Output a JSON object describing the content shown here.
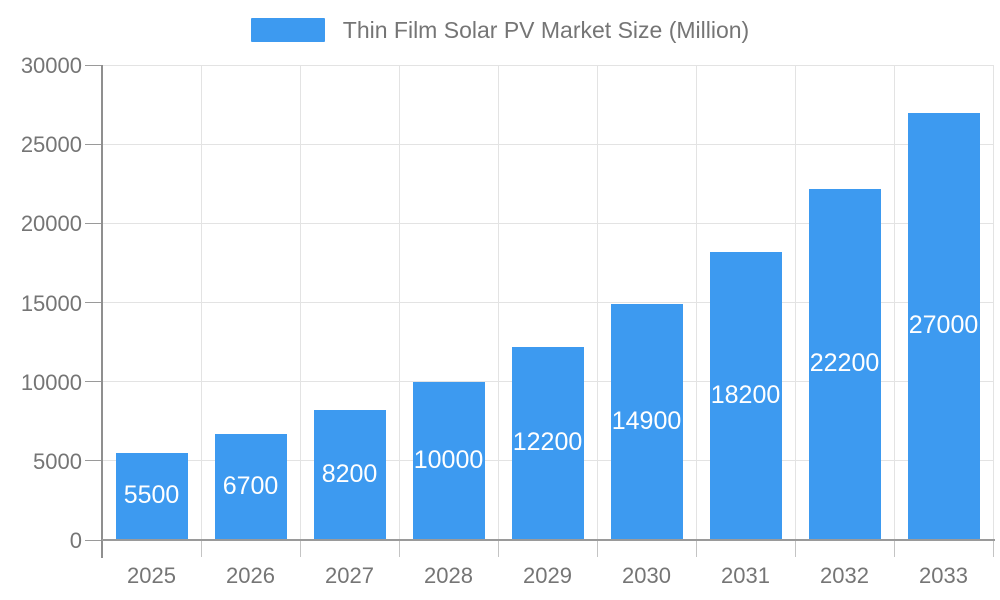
{
  "chart_data": {
    "type": "bar",
    "title": "Thin Film Solar PV Market Size (Million)",
    "categories": [
      "2025",
      "2026",
      "2027",
      "2028",
      "2029",
      "2030",
      "2031",
      "2032",
      "2033"
    ],
    "series": [
      {
        "name": "Thin Film Solar PV Market Size (Million)",
        "values": [
          5500,
          6700,
          8200,
          10000,
          12200,
          14900,
          18200,
          22200,
          27000
        ]
      }
    ],
    "data_labels": [
      "5500",
      "6700",
      "8200",
      "10000",
      "12200",
      "14900",
      "18200",
      "22200",
      "27000"
    ],
    "xlabel": "",
    "ylabel": "",
    "ylim": [
      0,
      30000
    ],
    "y_ticks": [
      0,
      5000,
      10000,
      15000,
      20000,
      25000,
      30000
    ],
    "y_tick_labels": [
      "0",
      "5000",
      "10000",
      "15000",
      "20000",
      "25000",
      "30000"
    ],
    "grid": "on",
    "legend_position": "top",
    "colors": {
      "bar": "#3d9af0",
      "bar_label": "#ffffff",
      "axis_text": "#757575",
      "axis_line": "#9a9a9a",
      "gridline": "#e3e3e3",
      "background": "#ffffff"
    }
  }
}
